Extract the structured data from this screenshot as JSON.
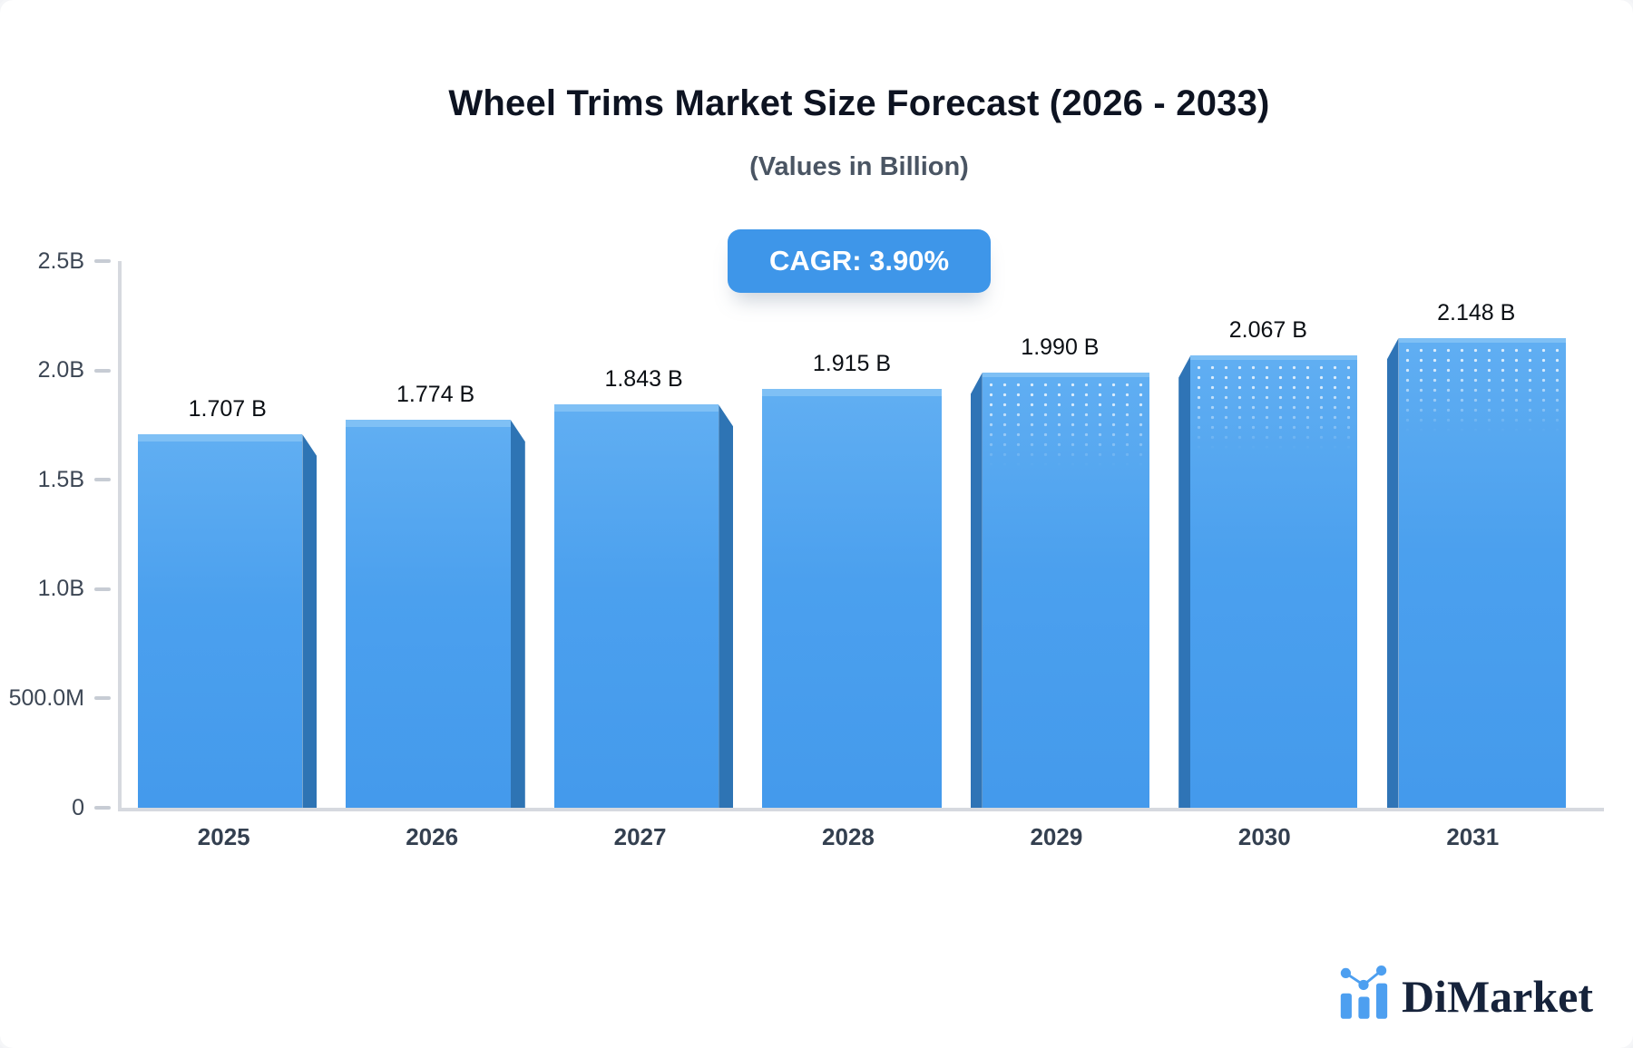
{
  "title": "Wheel Trims Market Size Forecast (2026 - 2033)",
  "subtitle": "(Values in Billion)",
  "badge": {
    "label": "CAGR: 3.90%"
  },
  "chart_data": {
    "type": "bar",
    "categories": [
      "2025",
      "2026",
      "2027",
      "2028",
      "2029",
      "2030",
      "2031"
    ],
    "values": [
      1.707,
      1.774,
      1.843,
      1.915,
      1.99,
      2.067,
      2.148
    ],
    "value_labels": [
      "1.707 B",
      "1.774 B",
      "1.843 B",
      "1.915 B",
      "1.990 B",
      "2.067 B",
      "2.148 B"
    ],
    "unit": "Billion USD",
    "ylim": [
      0,
      2.5
    ],
    "y_ticks": [
      {
        "label": "2.5B",
        "value": 2.5
      },
      {
        "label": "2.0B",
        "value": 2.0
      },
      {
        "label": "1.5B",
        "value": 1.5
      },
      {
        "label": "1.0B",
        "value": 1.0
      },
      {
        "label": "500.0M",
        "value": 0.5
      },
      {
        "label": "0",
        "value": 0
      }
    ],
    "bar_styles": [
      "right-edge",
      "right-edge",
      "right-edge",
      "flat",
      "left-edge-dotted",
      "left-edge-dotted",
      "left-edge-dotted"
    ],
    "grid": "off",
    "legend": "none"
  },
  "branding": {
    "logo_text": "DiMarket",
    "logo_icon": "bar-chart-icon"
  },
  "colors": {
    "badge_blue": "#3e96e9",
    "bar_fill_top": "#60aef2",
    "bar_fill_bottom": "#449aec",
    "bar_highlight": "#7fc0f5",
    "bar_edge_dark": "#2e74b4",
    "axis_line": "#d6d9df",
    "tick_text": "#3c4654",
    "year_text": "#344050",
    "value_text": "#0b0f14",
    "logo_navy": "#16233b"
  }
}
